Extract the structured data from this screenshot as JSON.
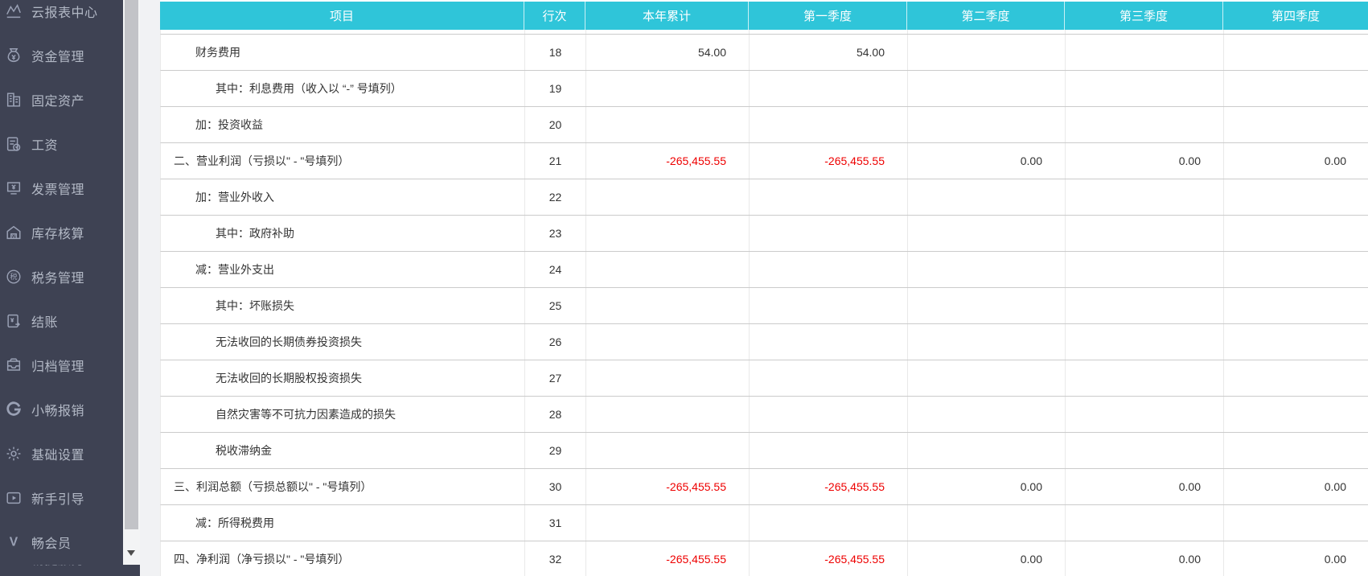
{
  "colors": {
    "sidebar_bg": "#3e4253",
    "sidebar_text": "#b3b9c6",
    "sidebar_icon": "#9aa1b5",
    "header_bg": "#2fc5d9",
    "header_text": "#ffffff",
    "body_text": "#333333",
    "negative": "#ee0000"
  },
  "sidebar": {
    "items": [
      {
        "name": "cloud-report-center",
        "icon": "chart-line-icon",
        "label": "云报表中心"
      },
      {
        "name": "funds-management",
        "icon": "money-bag-icon",
        "label": "资金管理"
      },
      {
        "name": "fixed-assets",
        "icon": "building-icon",
        "label": "固定资产"
      },
      {
        "name": "salary",
        "icon": "salary-sheet-icon",
        "label": "工资"
      },
      {
        "name": "invoice-management",
        "icon": "invoice-icon",
        "label": "发票管理"
      },
      {
        "name": "inventory-accounting",
        "icon": "warehouse-icon",
        "label": "库存核算"
      },
      {
        "name": "tax-management",
        "icon": "tax-icon",
        "label": "税务管理"
      },
      {
        "name": "closing",
        "icon": "ledger-icon",
        "label": "结账"
      },
      {
        "name": "archive-management",
        "icon": "archive-icon",
        "label": "归档管理"
      },
      {
        "name": "xiaochang-expense",
        "icon": "chanjet-logo-icon",
        "label": "小畅报销"
      },
      {
        "name": "basic-settings",
        "icon": "gear-icon",
        "label": "基础设置"
      },
      {
        "name": "beginner-guide",
        "icon": "video-guide-icon",
        "label": "新手引导"
      },
      {
        "name": "chang-member",
        "icon": "vip-icon",
        "label": "畅会员"
      }
    ],
    "partial_item": {
      "name": "partial-bottom-item",
      "icon": "chanjet-logo-icon",
      "label": "畅捷服务"
    }
  },
  "table": {
    "columns": [
      "项目",
      "行次",
      "本年累计",
      "第一季度",
      "第二季度",
      "第三季度",
      "第四季度"
    ],
    "rows": [
      {
        "item": "财务费用",
        "line": "18",
        "ytd": "54.00",
        "q1": "54.00",
        "q2": "",
        "q3": "",
        "q4": "",
        "indent": 1
      },
      {
        "item": "其中：利息费用（收入以 “-” 号填列）",
        "line": "19",
        "ytd": "",
        "q1": "",
        "q2": "",
        "q3": "",
        "q4": "",
        "indent": 2
      },
      {
        "item": "加：投资收益",
        "line": "20",
        "ytd": "",
        "q1": "",
        "q2": "",
        "q3": "",
        "q4": "",
        "indent": 1
      },
      {
        "item": "二、营业利润（亏损以\" - \"号填列）",
        "line": "21",
        "ytd": "-265,455.55",
        "q1": "-265,455.55",
        "q2": "0.00",
        "q3": "0.00",
        "q4": "0.00",
        "indent": 0
      },
      {
        "item": "加：营业外收入",
        "line": "22",
        "ytd": "",
        "q1": "",
        "q2": "",
        "q3": "",
        "q4": "",
        "indent": 1
      },
      {
        "item": "其中：政府补助",
        "line": "23",
        "ytd": "",
        "q1": "",
        "q2": "",
        "q3": "",
        "q4": "",
        "indent": 2
      },
      {
        "item": "减：营业外支出",
        "line": "24",
        "ytd": "",
        "q1": "",
        "q2": "",
        "q3": "",
        "q4": "",
        "indent": 1
      },
      {
        "item": "其中：坏账损失",
        "line": "25",
        "ytd": "",
        "q1": "",
        "q2": "",
        "q3": "",
        "q4": "",
        "indent": 2
      },
      {
        "item": "无法收回的长期债券投资损失",
        "line": "26",
        "ytd": "",
        "q1": "",
        "q2": "",
        "q3": "",
        "q4": "",
        "indent": 2
      },
      {
        "item": "无法收回的长期股权投资损失",
        "line": "27",
        "ytd": "",
        "q1": "",
        "q2": "",
        "q3": "",
        "q4": "",
        "indent": 2
      },
      {
        "item": "自然灾害等不可抗力因素造成的损失",
        "line": "28",
        "ytd": "",
        "q1": "",
        "q2": "",
        "q3": "",
        "q4": "",
        "indent": 2
      },
      {
        "item": "税收滞纳金",
        "line": "29",
        "ytd": "",
        "q1": "",
        "q2": "",
        "q3": "",
        "q4": "",
        "indent": 2
      },
      {
        "item": "三、利润总额（亏损总额以\" - \"号填列）",
        "line": "30",
        "ytd": "-265,455.55",
        "q1": "-265,455.55",
        "q2": "0.00",
        "q3": "0.00",
        "q4": "0.00",
        "indent": 0
      },
      {
        "item": "减：所得税费用",
        "line": "31",
        "ytd": "",
        "q1": "",
        "q2": "",
        "q3": "",
        "q4": "",
        "indent": 1
      },
      {
        "item": "四、净利润（净亏损以\" - \"号填列）",
        "line": "32",
        "ytd": "-265,455.55",
        "q1": "-265,455.55",
        "q2": "0.00",
        "q3": "0.00",
        "q4": "0.00",
        "indent": 0
      }
    ]
  }
}
